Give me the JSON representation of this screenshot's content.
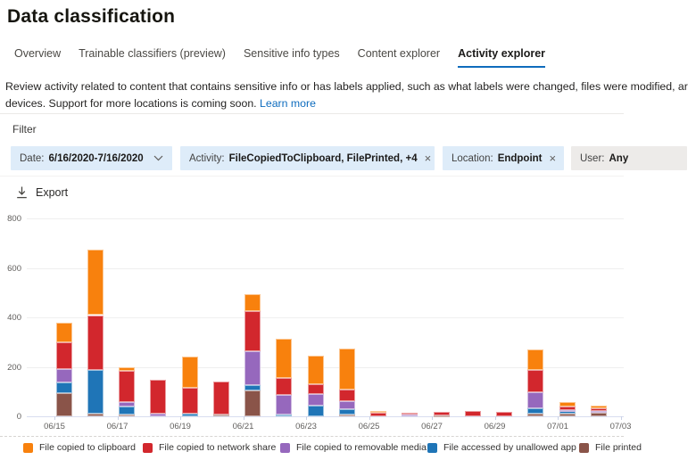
{
  "page": {
    "title": "Data classification"
  },
  "tabs": [
    {
      "label": "Overview",
      "active": false
    },
    {
      "label": "Trainable classifiers (preview)",
      "active": false
    },
    {
      "label": "Sensitive info types",
      "active": false
    },
    {
      "label": "Content explorer",
      "active": false
    },
    {
      "label": "Activity explorer",
      "active": true
    }
  ],
  "description": {
    "line1": "Review activity related to content that contains sensitive info or has labels applied, such as what labels were changed, files were modified, ar",
    "line2": "devices. Support for more locations is coming soon.",
    "link": "Learn more"
  },
  "filter": {
    "heading": "Filter",
    "chips": [
      {
        "label": "Date:",
        "value": "6/16/2020-7/16/2020",
        "control": "chevron"
      },
      {
        "label": "Activity:",
        "value": "FileCopiedToClipboard, FilePrinted, +4",
        "control": "close"
      },
      {
        "label": "Location:",
        "value": "Endpoint",
        "control": "close"
      },
      {
        "label": "User:",
        "value": "Any",
        "control": "none"
      }
    ]
  },
  "toolbar": {
    "export_label": "Export"
  },
  "chart_data": {
    "type": "bar",
    "stacked": true,
    "grid": true,
    "ylim": [
      0,
      800
    ],
    "y_ticks": [
      0,
      200,
      400,
      600,
      800
    ],
    "categories": [
      "06/15",
      "06/16",
      "06/17",
      "06/18",
      "06/19",
      "06/20",
      "06/21",
      "06/22",
      "06/23",
      "06/24",
      "06/25",
      "06/26",
      "06/27",
      "06/28",
      "06/29",
      "06/30",
      "07/01",
      "07/02"
    ],
    "x_tick_labels": [
      "06/15",
      "06/17",
      "06/19",
      "06/21",
      "06/23",
      "06/25",
      "06/27",
      "06/29",
      "07/01",
      "07/03"
    ],
    "series": [
      {
        "name": "File printed",
        "color": "#8A5449",
        "values": [
          92,
          12,
          8,
          0,
          0,
          8,
          103,
          0,
          0,
          8,
          0,
          0,
          4,
          0,
          0,
          12,
          12,
          15
        ]
      },
      {
        "name": "File accessed by unallowed app",
        "color": "#1F75B7",
        "values": [
          44,
          175,
          30,
          0,
          10,
          0,
          24,
          8,
          42,
          22,
          0,
          0,
          0,
          0,
          0,
          22,
          8,
          0
        ]
      },
      {
        "name": "File copied to removable media",
        "color": "#9668BD",
        "values": [
          54,
          0,
          18,
          12,
          0,
          0,
          135,
          77,
          48,
          33,
          0,
          6,
          0,
          0,
          0,
          63,
          4,
          8
        ]
      },
      {
        "name": "File copied to network share",
        "color": "#D2272D",
        "values": [
          110,
          222,
          126,
          135,
          105,
          134,
          162,
          69,
          40,
          45,
          15,
          8,
          14,
          22,
          18,
          91,
          14,
          10
        ]
      },
      {
        "name": "File copied to clipboard",
        "color": "#F8810D",
        "values": [
          80,
          265,
          15,
          0,
          125,
          0,
          71,
          158,
          116,
          165,
          7,
          0,
          0,
          0,
          0,
          82,
          20,
          12
        ]
      }
    ],
    "legend_position": "bottom",
    "legend": [
      {
        "label": "File copied to clipboard",
        "color": "#F8810D"
      },
      {
        "label": "File copied to network share",
        "color": "#D2272D"
      },
      {
        "label": "File copied to removable media",
        "color": "#9668BD"
      },
      {
        "label": "File accessed by unallowed app",
        "color": "#1F75B7"
      },
      {
        "label": "File printed",
        "color": "#8A5449"
      }
    ]
  }
}
